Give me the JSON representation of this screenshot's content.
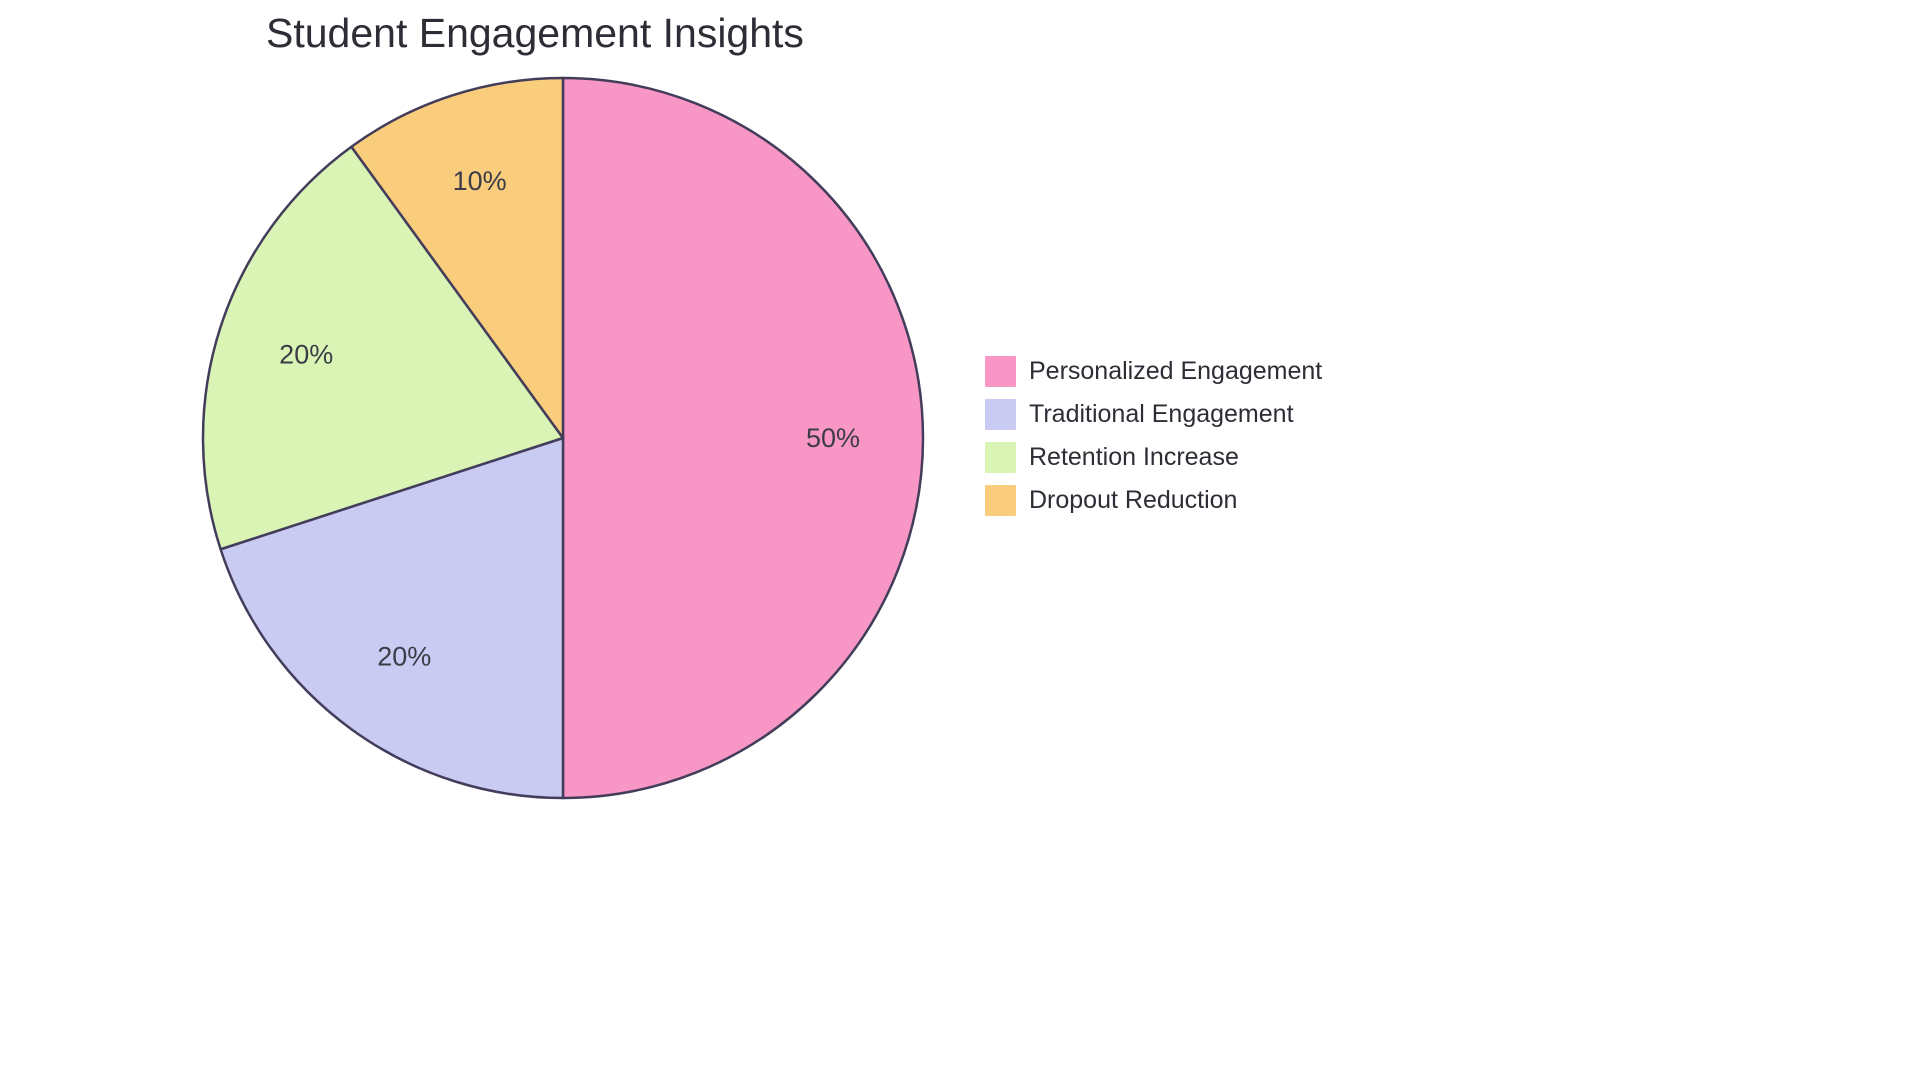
{
  "chart_data": {
    "type": "pie",
    "title": "Student Engagement Insights",
    "labels": [
      "Personalized Engagement",
      "Traditional Engagement",
      "Retention Increase",
      "Dropout Reduction"
    ],
    "values": [
      50,
      20,
      20,
      10
    ],
    "unit": "%",
    "slice_labels": [
      "50%",
      "20%",
      "20%",
      "10%"
    ],
    "colors": [
      "#F897C5",
      "#C9CBF3",
      "#D9F4B5",
      "#FACD7D"
    ],
    "stroke_color": "#433D5B",
    "label_color": "#3C3C46",
    "legend_position": "right",
    "start_angle_deg": 0,
    "direction": "clockwise",
    "grid": false
  }
}
